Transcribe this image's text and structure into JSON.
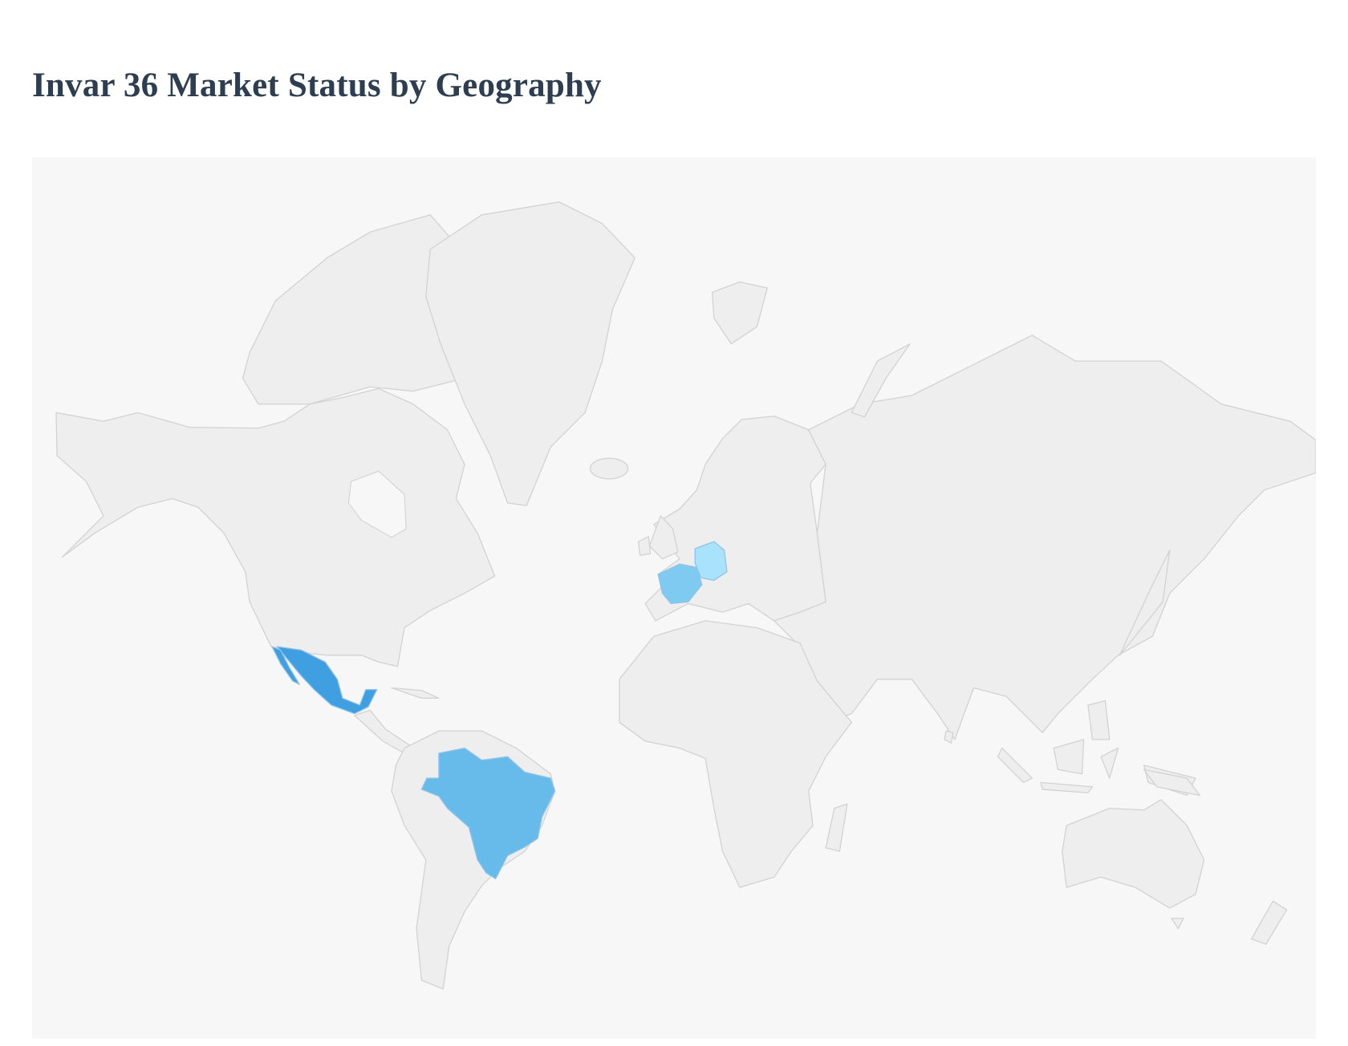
{
  "title": "Invar 36 Market Status by Geography",
  "map": {
    "type": "choropleth-world",
    "colors": {
      "land": "#eeeeee",
      "border": "#d2d2d2",
      "background": "#f7f7f7"
    },
    "highlighted_regions": [
      {
        "id": "MX",
        "color": "#3f9fe0"
      },
      {
        "id": "BR",
        "color": "#66bbeb"
      },
      {
        "id": "FR",
        "color": "#7fcaf1"
      },
      {
        "id": "DE",
        "color": "#a9e3fb"
      }
    ]
  }
}
